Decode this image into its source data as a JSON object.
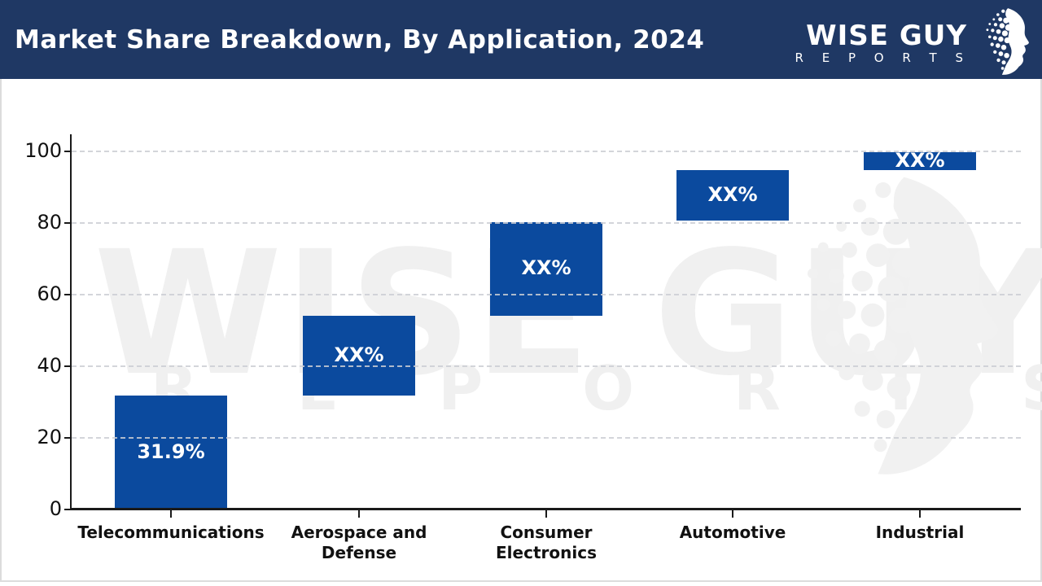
{
  "header": {
    "title": "Market Share Breakdown, By Application, 2024",
    "background_color": "#1f3864",
    "logo": {
      "line1": "WISE GUY",
      "line2": "REPORTS"
    }
  },
  "watermark": {
    "line1": "WISE GUY",
    "line2": "REPORTS"
  },
  "chart_data": {
    "type": "bar",
    "subtype": "waterfall",
    "title": "Market Share Breakdown, By Application, 2024",
    "categories": [
      "Telecommunications",
      "Aerospace and\nDefense",
      "Consumer\nElectronics",
      "Automotive",
      "Industrial"
    ],
    "bars": [
      {
        "category": "Telecommunications",
        "start": 0,
        "end": 31.9,
        "label": "31.9%"
      },
      {
        "category": "Aerospace and Defense",
        "start": 31.9,
        "end": 54.1,
        "label": "XX%"
      },
      {
        "category": "Consumer Electronics",
        "start": 54.1,
        "end": 80.3,
        "label": "XX%"
      },
      {
        "category": "Automotive",
        "start": 80.6,
        "end": 94.8,
        "label": "XX%"
      },
      {
        "category": "Industrial",
        "start": 94.8,
        "end": 99.7,
        "label": "XX%"
      }
    ],
    "yticks": [
      0,
      20,
      40,
      60,
      80,
      100
    ],
    "ylim": [
      0,
      104.5
    ],
    "xlabel": "",
    "ylabel": "",
    "grid": "horizontal-dashed",
    "legend": "none",
    "bar_color": "#0b4a9e",
    "bar_label_color": "#ffffff"
  }
}
